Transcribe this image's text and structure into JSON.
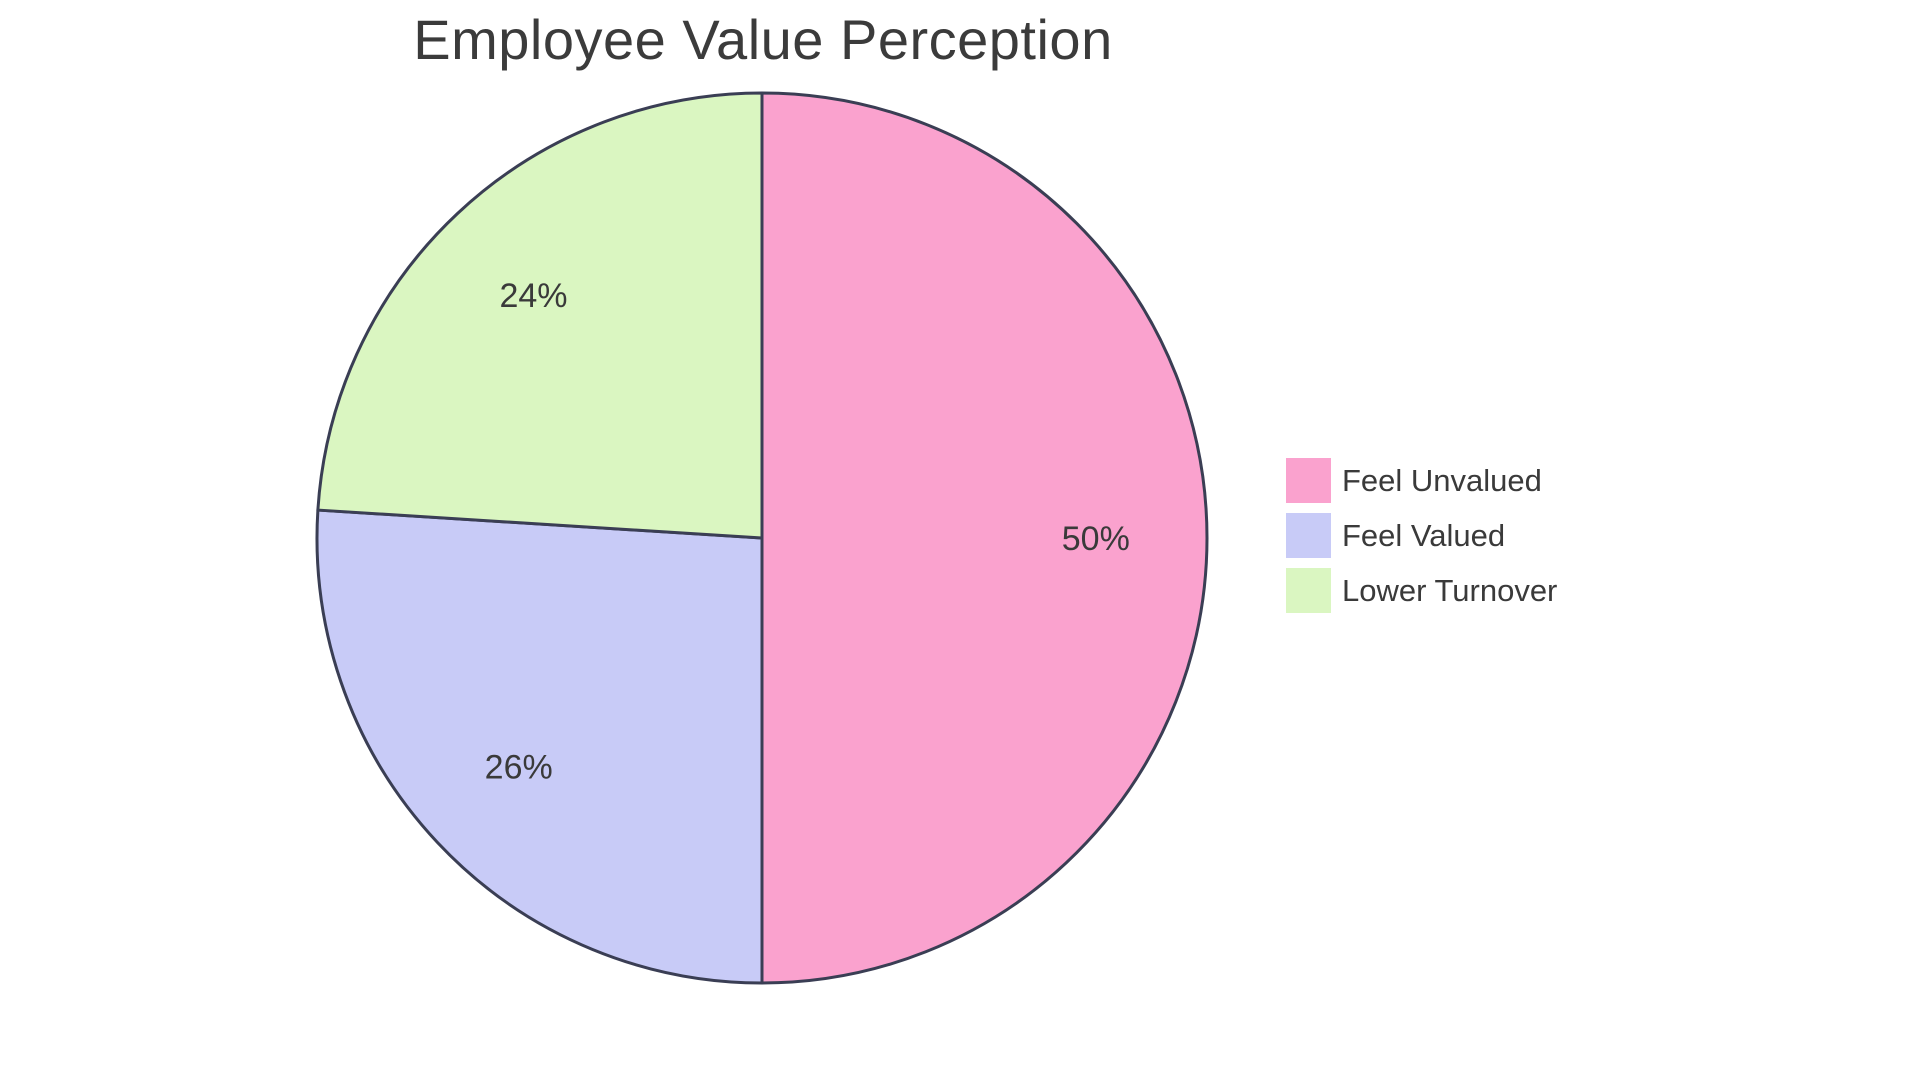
{
  "page": {
    "background": "#ffffff"
  },
  "chart_data": {
    "type": "pie",
    "title": "Employee Value Perception",
    "slices": [
      {
        "label": "Feel Unvalued",
        "value": 50,
        "display": "50%",
        "color": "#FAA2CE"
      },
      {
        "label": "Feel Valued",
        "value": 26,
        "display": "26%",
        "color": "#C8CBF7"
      },
      {
        "label": "Lower Turnover",
        "value": 24,
        "display": "24%",
        "color": "#DAF6C1"
      }
    ],
    "start_angle_deg": 0,
    "direction": "clockwise",
    "outline_color": "#3A3E54",
    "outline_width": 3,
    "label_color": "#3a3a3a",
    "label_radius_fraction": 0.75,
    "legend_position": "right",
    "title_color": "#3b3b3b"
  }
}
